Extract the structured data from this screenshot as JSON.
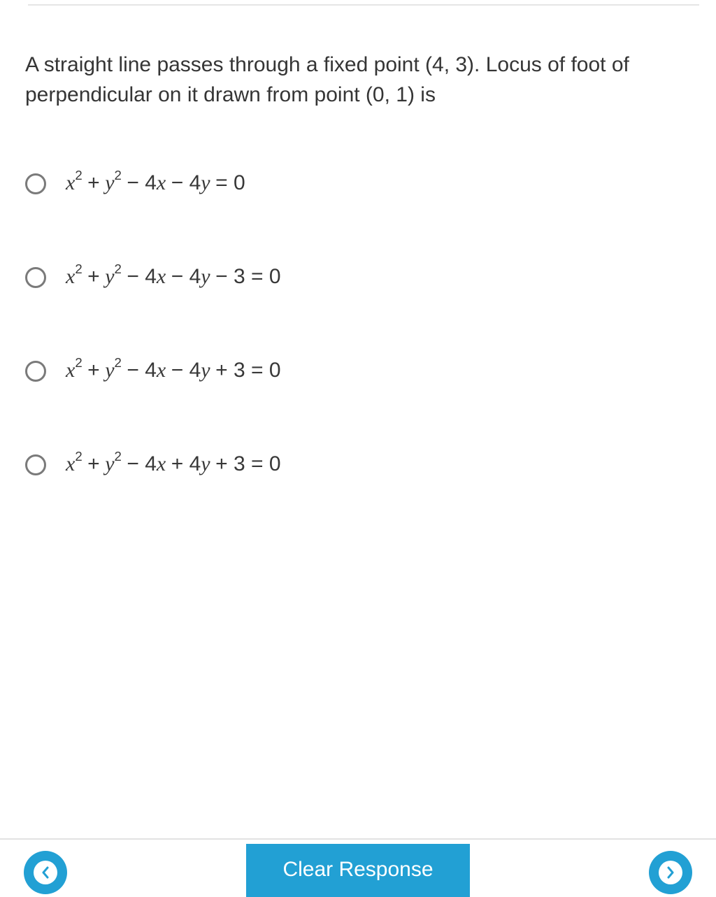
{
  "colors": {
    "text": "#353535",
    "option_text": "#383838",
    "radio_border": "#7a7a7a",
    "separator": "#e2e2e2",
    "accent": "#22a0d4",
    "white": "#ffffff"
  },
  "question": {
    "html": "A straight line passes through a fixed point (4, 3). Locus of foot of perpendicular on it drawn from point (0, 1) is"
  },
  "options": [
    {
      "html": "x<sup>2</sup> <span class='rm'>+</span> y<sup>2</sup> <span class='rm'>− 4</span>x <span class='rm'>− 4</span>y <span class='rm'>= 0</span>"
    },
    {
      "html": "x<sup>2</sup> <span class='rm'>+</span> y<sup>2</sup> <span class='rm'>− 4</span>x <span class='rm'>− 4</span>y <span class='rm'>− 3 = 0</span>"
    },
    {
      "html": "x<sup>2</sup> <span class='rm'>+</span> y<sup>2</sup> <span class='rm'>− 4</span>x <span class='rm'>− 4</span>y <span class='rm'>+ 3 = 0</span>"
    },
    {
      "html": "x<sup>2</sup> <span class='rm'>+</span> y<sup>2</sup> <span class='rm'>− 4</span>x <span class='rm'>+ 4</span>y <span class='rm'>+ 3 = 0</span>"
    }
  ],
  "footer": {
    "clear_label": "Clear Response"
  }
}
